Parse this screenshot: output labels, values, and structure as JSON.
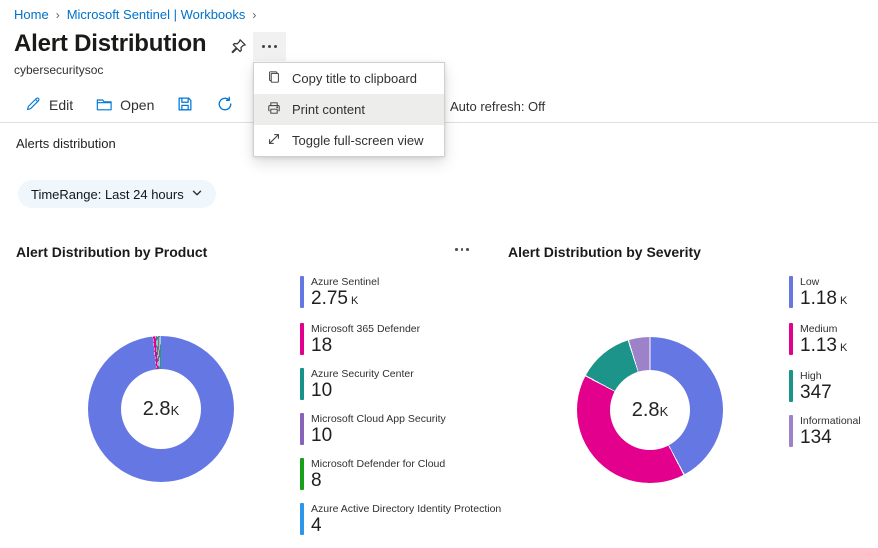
{
  "breadcrumb": {
    "separator": "›",
    "items": [
      {
        "label": "Home"
      },
      {
        "label": "Microsoft Sentinel | Workbooks"
      }
    ]
  },
  "header": {
    "title": "Alert Distribution",
    "subtitle": "cybersecuritysoc"
  },
  "toolbar": {
    "edit_label": "Edit",
    "open_label": "Open",
    "auto_refresh": "Auto refresh: Off"
  },
  "menu": {
    "items": [
      {
        "icon": "copy-icon",
        "label": "Copy title to clipboard",
        "hovered": false
      },
      {
        "icon": "printer-icon",
        "label": "Print content",
        "hovered": true
      },
      {
        "icon": "fullscreen-icon",
        "label": "Toggle full-screen view",
        "hovered": false
      }
    ]
  },
  "workbook": {
    "section_label": "Alerts distribution",
    "time_range_label": "TimeRange: Last 24 hours"
  },
  "chart_data": [
    {
      "type": "pie",
      "donut": true,
      "title": "Alert Distribution by Product",
      "center": {
        "value": "2.8",
        "suffix": "k"
      },
      "legend_position": "right",
      "gap_deg": 0.3,
      "slices": [
        {
          "label": "Azure Sentinel",
          "value": 2750,
          "display": "2.75",
          "suffix": "K",
          "color": "#6577e3"
        },
        {
          "label": "Microsoft 365 Defender",
          "value": 18,
          "display": "18",
          "suffix": "",
          "color": "#e3008c"
        },
        {
          "label": "Azure Security Center",
          "value": 10,
          "display": "10",
          "suffix": "",
          "color": "#17918a"
        },
        {
          "label": "Microsoft Cloud App Security",
          "value": 10,
          "display": "10",
          "suffix": "",
          "color": "#8764b8"
        },
        {
          "label": "Microsoft Defender for Cloud",
          "value": 8,
          "display": "8",
          "suffix": "",
          "color": "#18a018"
        },
        {
          "label": "Azure Active Directory Identity Protection",
          "value": 4,
          "display": "4",
          "suffix": "",
          "color": "#2e96e8"
        }
      ]
    },
    {
      "type": "pie",
      "donut": true,
      "title": "Alert Distribution by Severity",
      "center": {
        "value": "2.8",
        "suffix": "k"
      },
      "legend_position": "right",
      "gap_deg": 1.0,
      "slices": [
        {
          "label": "Low",
          "value": 1180,
          "display": "1.18",
          "suffix": "K",
          "color": "#6577e3"
        },
        {
          "label": "Medium",
          "value": 1130,
          "display": "1.13",
          "suffix": "K",
          "color": "#e3008c"
        },
        {
          "label": "High",
          "value": 347,
          "display": "347",
          "suffix": "",
          "color": "#1d9489"
        },
        {
          "label": "Informational",
          "value": 134,
          "display": "134",
          "suffix": "",
          "color": "#9d82c9"
        }
      ]
    }
  ]
}
